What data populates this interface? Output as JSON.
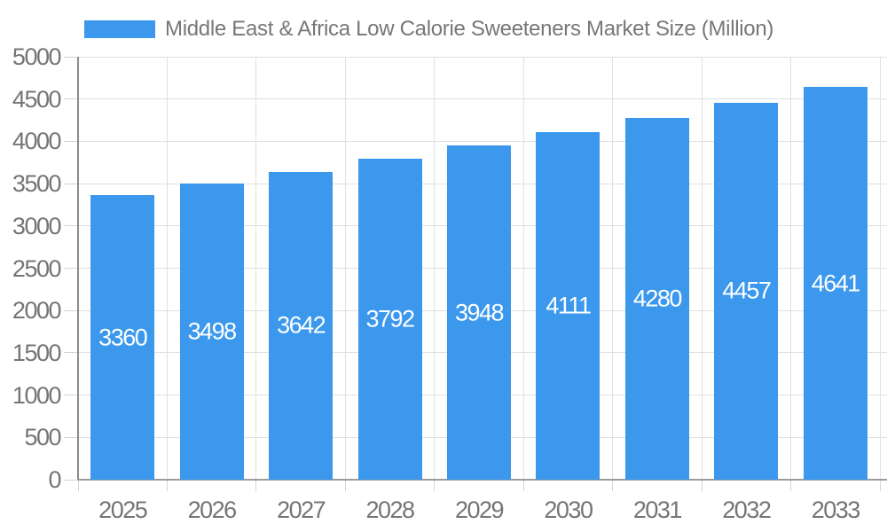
{
  "chart_data": {
    "type": "bar",
    "title": "Middle East & Africa Low Calorie Sweeteners Market Size (Million)",
    "legend": {
      "position": "top-left",
      "items": [
        {
          "label": "Middle East & Africa Low Calorie Sweeteners Market Size (Million)",
          "color": "#3b98ec"
        }
      ]
    },
    "categories": [
      "2025",
      "2026",
      "2027",
      "2028",
      "2029",
      "2030",
      "2031",
      "2032",
      "2033"
    ],
    "series": [
      {
        "name": "Middle East & Africa Low Calorie Sweeteners Market Size (Million)",
        "values": [
          3360,
          3498,
          3642,
          3792,
          3948,
          4111,
          4280,
          4457,
          4641
        ]
      }
    ],
    "bar_value_labels": [
      "3360",
      "3498",
      "3642",
      "3792",
      "3948",
      "4111",
      "4280",
      "4457",
      "4641"
    ],
    "xlabel": "",
    "ylabel": "",
    "ylim": [
      0,
      5000
    ],
    "yticks": [
      0,
      500,
      1000,
      1500,
      2000,
      2500,
      3000,
      3500,
      4000,
      4500,
      5000
    ],
    "grid": "on",
    "value_labels_position": "center-inside",
    "colors": {
      "bar": "#3b98ec",
      "bar_label": "#ffffff",
      "axis_text": "#757575",
      "title_text": "#777777",
      "grid_line": "#e0e0e0",
      "axis_line": "#8c8c8c",
      "zero_line": "#9c9c9c",
      "tick_line": "#d4d4d4",
      "background": "#ffffff"
    }
  }
}
